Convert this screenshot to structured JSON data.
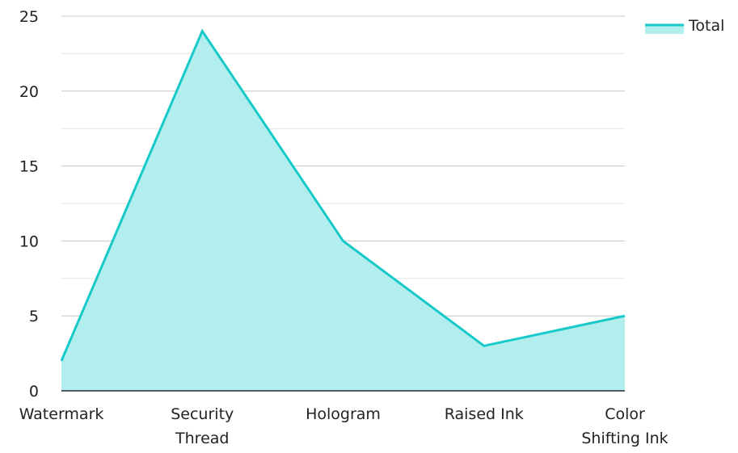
{
  "chart_data": {
    "type": "area",
    "categories": [
      "Watermark",
      "Security Thread",
      "Hologram",
      "Raised Ink",
      "Color Shifting Ink"
    ],
    "category_label_lines": [
      [
        "Watermark"
      ],
      [
        "Security",
        "Thread"
      ],
      [
        "Hologram"
      ],
      [
        "Raised Ink"
      ],
      [
        "Color",
        "Shifting Ink"
      ]
    ],
    "series": [
      {
        "name": "Total",
        "values": [
          2,
          24,
          10,
          3,
          5
        ]
      }
    ],
    "ylim": [
      0,
      25
    ],
    "yticks": [
      0,
      5,
      10,
      15,
      20,
      25
    ],
    "grid": true,
    "legend_position": "top-right",
    "colors": {
      "line": "#17c9c9",
      "fill": "#b2eeee",
      "grid_major": "#c8c8c8",
      "grid_minor": "#e6e6e6",
      "axis": "#000000"
    }
  }
}
